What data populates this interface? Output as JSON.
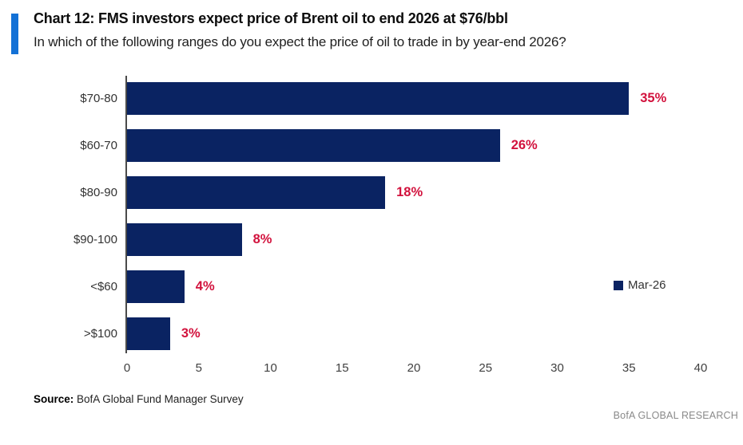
{
  "header": {
    "title": "Chart 12: FMS investors expect price of Brent oil to end 2026 at $76/bbl",
    "subtitle": "In which of the following ranges do you expect the price of oil to trade in by year-end 2026?",
    "accent_color": "#1371d6"
  },
  "chart_data": {
    "type": "bar",
    "orientation": "horizontal",
    "title": "Chart 12: FMS investors expect price of Brent oil to end 2026 at $76/bbl",
    "subtitle": "In which of the following ranges do you expect the price of oil to trade in by year-end 2026?",
    "categories": [
      "$70-80",
      "$60-70",
      "$80-90",
      "$90-100",
      "<$60",
      ">$100"
    ],
    "series": [
      {
        "name": "Mar-26",
        "values": [
          35,
          26,
          18,
          8,
          4,
          3
        ]
      }
    ],
    "value_labels": [
      "35%",
      "26%",
      "18%",
      "8%",
      "4%",
      "3%"
    ],
    "xlim": [
      0,
      40
    ],
    "x_ticks": [
      0,
      5,
      10,
      15,
      20,
      25,
      30,
      35,
      40
    ],
    "grid": false,
    "legend_position": "right",
    "bar_color": "#0a2362",
    "value_label_color": "#d2123d"
  },
  "footer": {
    "source_label": "Source:",
    "source_text": "BofA Global Fund Manager Survey",
    "brand": "BofA GLOBAL RESEARCH"
  }
}
